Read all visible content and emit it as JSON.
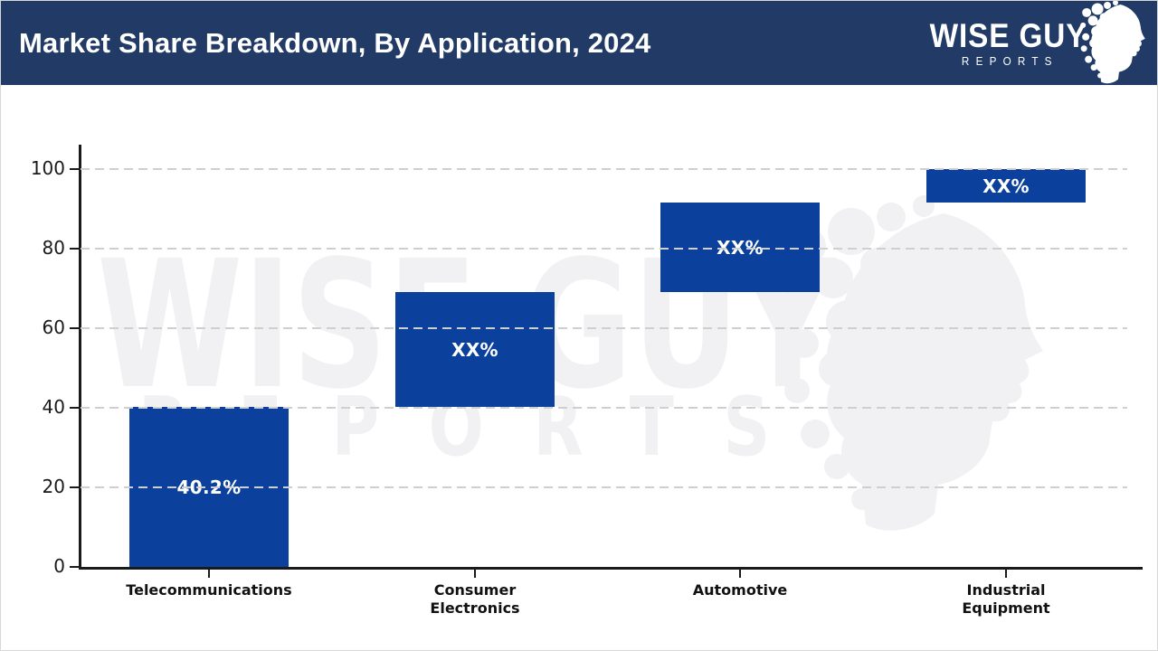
{
  "header": {
    "title": "Market Share Breakdown, By Application, 2024",
    "bg_color": "#213A66",
    "logo": {
      "wordmark": "WISE GUY",
      "subtext": "REPORTS"
    }
  },
  "watermark": {
    "wordmark": "WISE GUY",
    "subtext": "REPORTS"
  },
  "chart_data": {
    "type": "bar",
    "variant": "stepped-waterfall",
    "title": "Market Share Breakdown, By Application, 2024",
    "categories": [
      "Telecommunications",
      "Consumer\nElectronics",
      "Automotive",
      "Industrial\nEquipment"
    ],
    "segments": [
      {
        "category": "Telecommunications",
        "start": 0,
        "end": 40.2,
        "label": "40.2%"
      },
      {
        "category": "Consumer Electronics",
        "start": 40.2,
        "end": 69,
        "label": "XX%"
      },
      {
        "category": "Automotive",
        "start": 69,
        "end": 91.5,
        "label": "XX%"
      },
      {
        "category": "Industrial Equipment",
        "start": 91.5,
        "end": 100,
        "label": "XX%"
      }
    ],
    "yticks": [
      0,
      20,
      40,
      60,
      80,
      100
    ],
    "ylim": [
      0,
      100
    ],
    "xlabel": "",
    "ylabel": "",
    "bar_color": "#0B419C",
    "bar_label_color": "#ffffff",
    "grid": {
      "show": true,
      "orientation": "horizontal",
      "style": "dashed",
      "color": "#cfcfcf"
    },
    "legend": "none"
  }
}
